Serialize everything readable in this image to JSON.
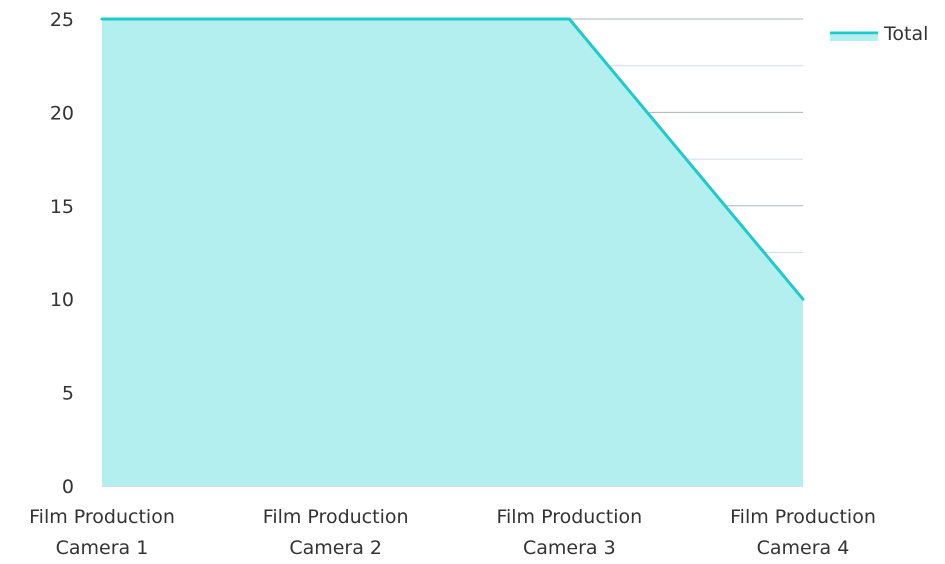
{
  "chart_data": {
    "type": "area",
    "categories": [
      [
        "Film Production",
        "Camera 1"
      ],
      [
        "Film Production",
        "Camera 2"
      ],
      [
        "Film Production",
        "Camera 3"
      ],
      [
        "Film Production",
        "Camera 4"
      ]
    ],
    "series": [
      {
        "name": "Total",
        "values": [
          25,
          25,
          25,
          10
        ]
      }
    ],
    "ylim": [
      0,
      25
    ],
    "y_ticks": [
      "0",
      "5",
      "10",
      "15",
      "20",
      "25"
    ],
    "grid": true,
    "legend": "top-right",
    "colors": {
      "line": "#1ECBCB",
      "fill": "#B2EFEE",
      "grid_major": "#AAB4BC",
      "grid_minor": "#D6DCE0"
    }
  }
}
